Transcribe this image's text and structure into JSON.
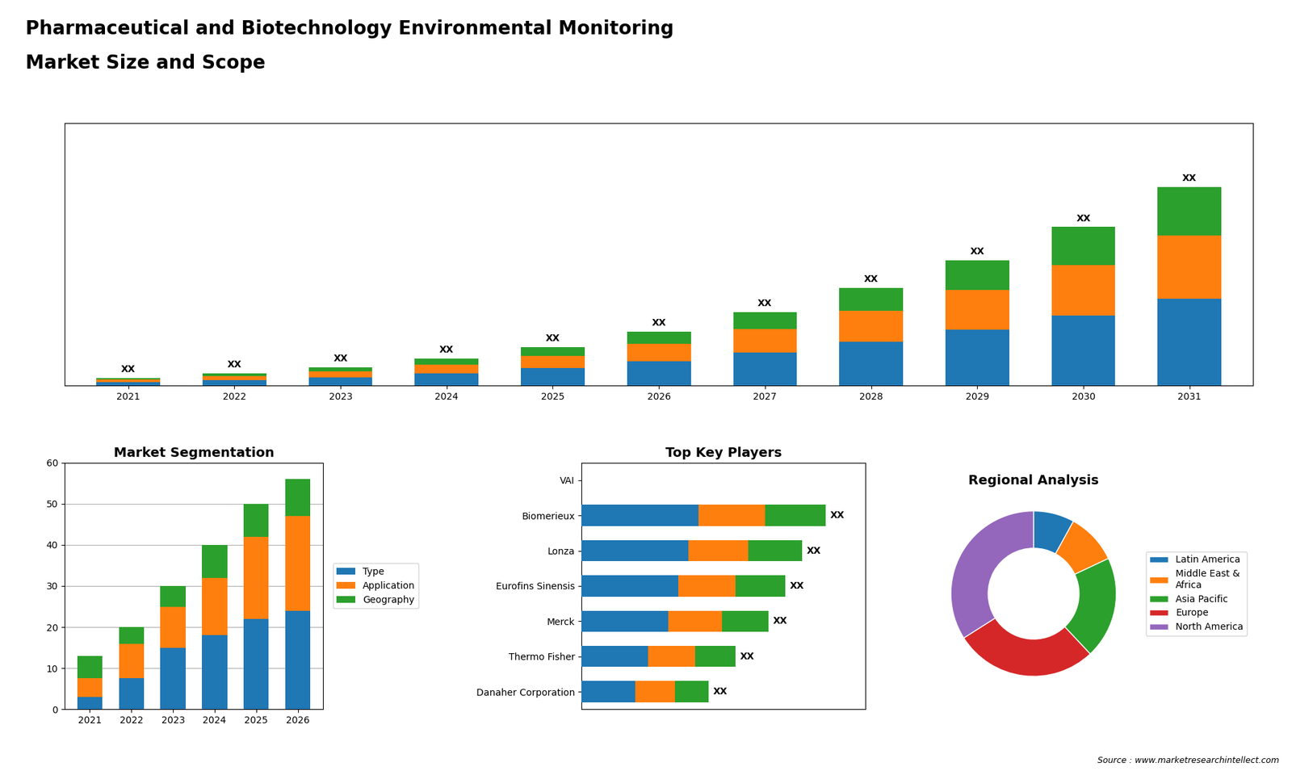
{
  "title": "Pharmaceutical and Biotechnology Environmental Monitoring",
  "subtitle": "Market Size and Scope",
  "annotations": [
    "Source : www.marketresearchintellect.com"
  ],
  "chart_data": [
    {
      "type": "bar",
      "stacked": true,
      "tick_labels": "x",
      "categories": [
        "2021",
        "2022",
        "2023",
        "2024",
        "2025",
        "2026",
        "2027",
        "2028",
        "2029",
        "2030",
        "2031"
      ],
      "series": [
        {
          "values": [
            1.0,
            1.6,
            2.4,
            3.5,
            5.0,
            7.0,
            9.5,
            12.5,
            16.0,
            20.0,
            25.0
          ]
        },
        {
          "values": [
            0.7,
            1.1,
            1.7,
            2.5,
            3.5,
            5.0,
            6.8,
            9.0,
            11.5,
            14.5,
            18.0
          ]
        },
        {
          "values": [
            0.5,
            0.8,
            1.2,
            1.8,
            2.5,
            3.5,
            4.8,
            6.5,
            8.5,
            11.0,
            14.0
          ]
        }
      ],
      "value_labels": [
        "XX",
        "XX",
        "XX",
        "XX",
        "XX",
        "XX",
        "XX",
        "XX",
        "XX",
        "XX",
        "XX"
      ],
      "ylim": [
        0,
        75.24
      ]
    },
    {
      "type": "bar",
      "stacked": true,
      "title": "Market Segmentation",
      "categories": [
        "2021",
        "2022",
        "2023",
        "2024",
        "2025",
        "2026"
      ],
      "series": [
        {
          "name": "Type",
          "values": [
            3,
            7.5,
            15,
            18,
            22,
            24
          ]
        },
        {
          "name": "Application",
          "values": [
            4.5,
            8.5,
            10,
            14,
            20,
            23
          ]
        },
        {
          "name": "Geography",
          "values": [
            5.5,
            4,
            5,
            8,
            8,
            9
          ]
        }
      ],
      "ylim": [
        0,
        60
      ],
      "yticks": [
        0,
        10,
        20,
        30,
        40,
        50,
        60
      ],
      "grid": true,
      "legend": "right"
    },
    {
      "type": "bar",
      "stacked": true,
      "orientation": "horizontal",
      "title": "Top Key Players",
      "tick_labels": "y",
      "categories": [
        "VAI",
        "Biomerieux",
        "Lonza",
        "Eurofins Sinensis",
        "Merck",
        "Thermo Fisher",
        "Danaher Corporation"
      ],
      "series": [
        {
          "values": [
            0,
            35,
            32,
            29,
            26,
            20,
            16
          ]
        },
        {
          "values": [
            0,
            20,
            18,
            17,
            16,
            14,
            12
          ]
        },
        {
          "values": [
            0,
            18,
            16,
            15,
            14,
            12,
            10
          ]
        }
      ],
      "value_labels": [
        null,
        "XX",
        "XX",
        "XX",
        "XX",
        "XX",
        "XX"
      ],
      "xlim": [
        0,
        85
      ]
    },
    {
      "type": "pie",
      "title": "Regional Analysis",
      "categories": [
        "Latin America",
        "Middle East &\nAfrica",
        "Asia Pacific",
        "Europe",
        "North America"
      ],
      "values": [
        8,
        10,
        20,
        28,
        34
      ],
      "legend": "right"
    }
  ]
}
